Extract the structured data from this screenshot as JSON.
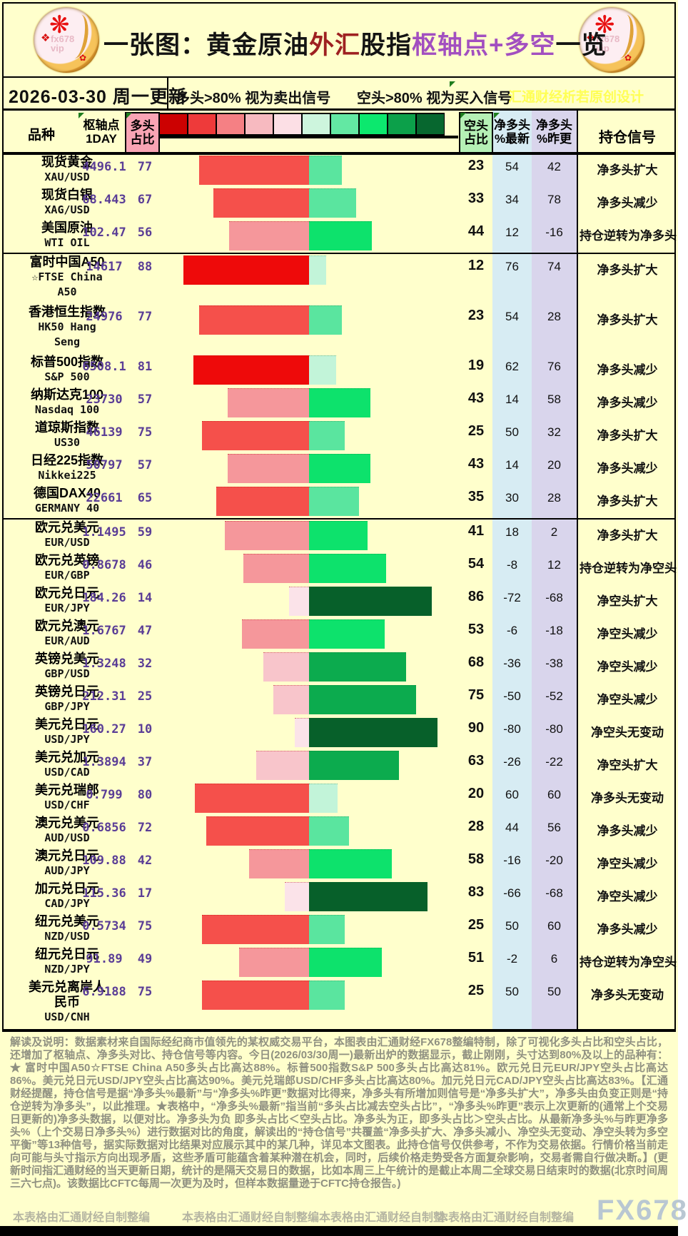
{
  "title": {
    "segments": [
      {
        "text": "一张图：黄金原油",
        "color": "#141414"
      },
      {
        "text": "外汇",
        "color": "#9e2020"
      },
      {
        "text": "股指",
        "color": "#141414"
      },
      {
        "text": "枢轴点+多空",
        "color": "#a24fc0"
      },
      {
        "text": "一览",
        "color": "#141414"
      }
    ],
    "logo_name": "fx678-gold-coin"
  },
  "date_bar": {
    "date": "2026-03-30 周一更新",
    "legend_long": "多头>80% 视为卖出信号",
    "legend_short": "空头>80% 视为买入信号",
    "watermark": "汇通财经析若原创设计"
  },
  "header": {
    "variety": "品种",
    "pivot_l1": "枢轴点",
    "pivot_l2": "1DAY",
    "long_l1": "多头",
    "long_l2": "占比",
    "short_l1": "空头",
    "short_l2": "占比",
    "netnew_l1": "净多头",
    "netnew_l2": "%最新",
    "netprev_l1": "净多头",
    "netprev_l2": "%昨更",
    "signal": "持仓信号",
    "scale_colors": [
      "#cc0101",
      "#ee3a3a",
      "#f58084",
      "#f7bac0",
      "#fcdfe5",
      "#cdf5dd",
      "#63e8a3",
      "#0ce86e",
      "#0ca04a",
      "#07672f"
    ]
  },
  "colors": {
    "value_purple": "#5a3d96",
    "long_bins": [
      {
        "max": 20,
        "color": "#fbe3e9"
      },
      {
        "max": 40,
        "color": "#f8c5cb"
      },
      {
        "max": 60,
        "color": "#f5979b"
      },
      {
        "max": 80,
        "color": "#f5504b"
      },
      {
        "max": 100,
        "color": "#ee0a0a"
      }
    ],
    "short_bins": [
      {
        "max": 20,
        "color": "#c2f4d9"
      },
      {
        "max": 40,
        "color": "#5ae59f"
      },
      {
        "max": 60,
        "color": "#0de26c"
      },
      {
        "max": 80,
        "color": "#0cab4e"
      },
      {
        "max": 100,
        "color": "#07602a"
      }
    ]
  },
  "table": {
    "rows": [
      {
        "name_lines": [
          "现货黄金",
          "XAU/USD"
        ],
        "pivot": "4496.1",
        "long": 77,
        "short": 23,
        "net_new": "54",
        "net_prev": "42",
        "signal": "净多头扩大"
      },
      {
        "name_lines": [
          "现货白银",
          "XAG/USD"
        ],
        "pivot": "68.443",
        "long": 67,
        "short": 33,
        "net_new": "34",
        "net_prev": "78",
        "signal": "净多头减少"
      },
      {
        "name_lines": [
          "美国原油",
          "WTI OIL"
        ],
        "pivot": "102.47",
        "long": 56,
        "short": 44,
        "net_new": "12",
        "net_prev": "-16",
        "signal": "持仓逆转为净多头",
        "group_end": true
      },
      {
        "name_lines": [
          "富时中国A50",
          "☆FTSE China",
          "A50"
        ],
        "pivot": "14617",
        "long": 88,
        "short": 12,
        "net_new": "76",
        "net_prev": "74",
        "signal": "净多头扩大"
      },
      {
        "name_lines": [
          "香港恒生指数",
          "HK50 Hang",
          "Seng"
        ],
        "pivot": "24976",
        "long": 77,
        "short": 23,
        "net_new": "54",
        "net_prev": "28",
        "signal": "净多头扩大"
      },
      {
        "name_lines": [
          "标普500指数",
          "S&P 500"
        ],
        "pivot": "6508.1",
        "long": 81,
        "short": 19,
        "net_new": "62",
        "net_prev": "76",
        "signal": "净多头减少"
      },
      {
        "name_lines": [
          "纳斯达克100",
          "Nasdaq 100"
        ],
        "pivot": "23730",
        "long": 57,
        "short": 43,
        "net_new": "14",
        "net_prev": "58",
        "signal": "净多头减少"
      },
      {
        "name_lines": [
          "道琼斯指数",
          "US30"
        ],
        "pivot": "46139",
        "long": 75,
        "short": 25,
        "net_new": "50",
        "net_prev": "32",
        "signal": "净多头扩大"
      },
      {
        "name_lines": [
          "日经225指数",
          "Nikkei225"
        ],
        "pivot": "50797",
        "long": 57,
        "short": 43,
        "net_new": "14",
        "net_prev": "20",
        "signal": "净多头减少"
      },
      {
        "name_lines": [
          "德国DAX40",
          "GERMANY 40"
        ],
        "pivot": "22661",
        "long": 65,
        "short": 35,
        "net_new": "30",
        "net_prev": "28",
        "signal": "净多头扩大",
        "group_end": true
      },
      {
        "name_lines": [
          "欧元兑美元",
          "EUR/USD"
        ],
        "pivot": "1.1495",
        "long": 59,
        "short": 41,
        "net_new": "18",
        "net_prev": "2",
        "signal": "净多头扩大"
      },
      {
        "name_lines": [
          "欧元兑英镑",
          "EUR/GBP"
        ],
        "pivot": "0.8678",
        "long": 46,
        "short": 54,
        "net_new": "-8",
        "net_prev": "12",
        "signal": "持仓逆转为净空头"
      },
      {
        "name_lines": [
          "欧元兑日元",
          "EUR/JPY"
        ],
        "pivot": "184.26",
        "long": 14,
        "short": 86,
        "net_new": "-72",
        "net_prev": "-68",
        "signal": "净空头扩大"
      },
      {
        "name_lines": [
          "欧元兑澳元",
          "EUR/AUD"
        ],
        "pivot": "1.6767",
        "long": 47,
        "short": 53,
        "net_new": "-6",
        "net_prev": "-18",
        "signal": "净空头减少"
      },
      {
        "name_lines": [
          "英镑兑美元",
          "GBP/USD"
        ],
        "pivot": "1.3248",
        "long": 32,
        "short": 68,
        "net_new": "-36",
        "net_prev": "-38",
        "signal": "净空头减少"
      },
      {
        "name_lines": [
          "英镑兑日元",
          "GBP/JPY"
        ],
        "pivot": "212.31",
        "long": 25,
        "short": 75,
        "net_new": "-50",
        "net_prev": "-52",
        "signal": "净空头减少"
      },
      {
        "name_lines": [
          "美元兑日元",
          "USD/JPY"
        ],
        "pivot": "160.27",
        "long": 10,
        "short": 90,
        "net_new": "-80",
        "net_prev": "-80",
        "signal": "净空头无变动"
      },
      {
        "name_lines": [
          "美元兑加元",
          "USD/CAD"
        ],
        "pivot": "1.3894",
        "long": 37,
        "short": 63,
        "net_new": "-26",
        "net_prev": "-22",
        "signal": "净空头扩大"
      },
      {
        "name_lines": [
          "美元兑瑞郎",
          "USD/CHF"
        ],
        "pivot": "0.799",
        "long": 80,
        "short": 20,
        "net_new": "60",
        "net_prev": "60",
        "signal": "净多头无变动"
      },
      {
        "name_lines": [
          "澳元兑美元",
          "AUD/USD"
        ],
        "pivot": "0.6856",
        "long": 72,
        "short": 28,
        "net_new": "44",
        "net_prev": "56",
        "signal": "净多头减少"
      },
      {
        "name_lines": [
          "澳元兑日元",
          "AUD/JPY"
        ],
        "pivot": "109.88",
        "long": 42,
        "short": 58,
        "net_new": "-16",
        "net_prev": "-20",
        "signal": "净空头减少"
      },
      {
        "name_lines": [
          "加元兑日元",
          "CAD/JPY"
        ],
        "pivot": "115.36",
        "long": 17,
        "short": 83,
        "net_new": "-66",
        "net_prev": "-68",
        "signal": "净空头减少"
      },
      {
        "name_lines": [
          "纽元兑美元",
          "NZD/USD"
        ],
        "pivot": "0.5734",
        "long": 75,
        "short": 25,
        "net_new": "50",
        "net_prev": "60",
        "signal": "净多头减少"
      },
      {
        "name_lines": [
          "纽元兑日元",
          "NZD/JPY"
        ],
        "pivot": "91.89",
        "long": 49,
        "short": 51,
        "net_new": "-2",
        "net_prev": "6",
        "signal": "持仓逆转为净空头"
      },
      {
        "name_lines": [
          "美元兑离岸人",
          "民币",
          "USD/CNH"
        ],
        "pivot": "6.9188",
        "long": 75,
        "short": 25,
        "net_new": "50",
        "net_prev": "50",
        "signal": "净多头无变动"
      }
    ]
  },
  "chart_data": {
    "type": "bar",
    "subtype": "diverging-stacked-horizontal",
    "title": "一张图：黄金原油外汇股指枢轴点+多空一览",
    "categories": [
      "XAU/USD",
      "XAG/USD",
      "WTI OIL",
      "FTSE China A50",
      "HK50 Hang Seng",
      "S&P 500",
      "Nasdaq 100",
      "US30",
      "Nikkei225",
      "GERMANY 40",
      "EUR/USD",
      "EUR/GBP",
      "EUR/JPY",
      "EUR/AUD",
      "GBP/USD",
      "GBP/JPY",
      "USD/JPY",
      "USD/CAD",
      "USD/CHF",
      "AUD/USD",
      "AUD/JPY",
      "CAD/JPY",
      "NZD/USD",
      "NZD/JPY",
      "USD/CNH"
    ],
    "series": [
      {
        "name": "多头占比",
        "values": [
          77,
          67,
          56,
          88,
          77,
          81,
          57,
          75,
          57,
          65,
          59,
          46,
          14,
          47,
          32,
          25,
          10,
          37,
          80,
          72,
          42,
          17,
          75,
          49,
          75
        ]
      },
      {
        "name": "空头占比",
        "values": [
          23,
          33,
          44,
          12,
          23,
          19,
          43,
          25,
          43,
          35,
          41,
          54,
          86,
          53,
          68,
          75,
          90,
          63,
          20,
          28,
          58,
          83,
          25,
          51,
          25
        ]
      },
      {
        "name": "净多头%最新",
        "values": [
          54,
          34,
          12,
          76,
          54,
          62,
          14,
          50,
          14,
          30,
          18,
          -8,
          -72,
          -6,
          -36,
          -50,
          -80,
          -26,
          60,
          44,
          -16,
          -66,
          50,
          -2,
          50
        ]
      },
      {
        "name": "净多头%昨更",
        "values": [
          42,
          78,
          -16,
          74,
          28,
          76,
          58,
          32,
          20,
          28,
          2,
          12,
          -68,
          -18,
          -38,
          -52,
          -80,
          -22,
          60,
          56,
          -20,
          -68,
          60,
          6,
          50
        ]
      },
      {
        "name": "枢轴点1DAY",
        "values": [
          4496.1,
          68.443,
          102.47,
          14617,
          24976,
          6508.1,
          23730,
          46139,
          50797,
          22661,
          1.1495,
          0.8678,
          184.26,
          1.6767,
          1.3248,
          212.31,
          160.27,
          1.3894,
          0.799,
          0.6856,
          109.88,
          115.36,
          0.5734,
          91.89,
          6.9188
        ]
      }
    ],
    "xlim": [
      100,
      -100
    ],
    "legend_position": "none",
    "grid": false
  },
  "notes": {
    "text": "解读及说明：数据素材来自国际经纪商市值领先的某权威交易平台，本图表由汇通财经FX678整编特制，除了可视化多头占比和空头占比，还增加了枢轴点、净多头对比、持仓信号等内容。今日(2026/03/30周一)最新出炉的数据显示，截止刚刚，头寸达到80%及以上的品种有：★ 富时中国A50☆FTSE China A50多头占比高达88%。标普500指数S&P 500多头占比高达81%。欧元兑日元EUR/JPY空头占比高达86%。美元兑日元USD/JPY空头占比高达90%。美元兑瑞郎USD/CHF多头占比高达80%。加元兑日元CAD/JPY空头占比高达83%。【汇通财经提醒，持仓信号是据“净多头%最新”与“净多头%昨更”数据对比得来，净多头有所增加则信号是“净多头扩大”，净多头由负变正则是“持仓逆转为净多头”，以此推理。★表格中，“净多头%最新”指当前“多头占比减去空头占比”，“净多头%昨更”表示上次更新的(通常上个交易日更新的)净多头数据，以便对比。净多头为负 即多头占比＜空头占比。净多头为正，即多头占比＞空头占比。从最新净多头%与昨更净多头%（上个交易日净多头%）进行数据对比的角度，解读出的“持仓信号”共覆盖“净多头扩大、净多头减小、净空头无变动、净空头转为多空平衡”等13种信号，据实际数据对比结果对应展示其中的某几种，详见本文图表。此持仓信号仅供参考，不作为交易依据。行情价格当前走向可能与头寸指示方向出现矛盾，这些矛盾可能蕴含着某种潜在机会，同时，后续价格走势受各方面复杂影响，交易者需自行做决断。】(更新时间指汇通财经的当天更新日期，统计的是隔天交易日的数据，比如本周三上午统计的是截止本周二全球交易日结束时的数据(北京时间周三六七点)。该数据比CFTC每周一次更为及时，但样本数据量逊于CFTC持仓报告。)"
  },
  "footer": {
    "items": [
      "本表格由汇通财经自制整编",
      "本表格由汇通财经自制整编",
      "本表格由汇通财经自制整:",
      "本表格由汇通财经自制整编"
    ],
    "brand": "FX678"
  }
}
